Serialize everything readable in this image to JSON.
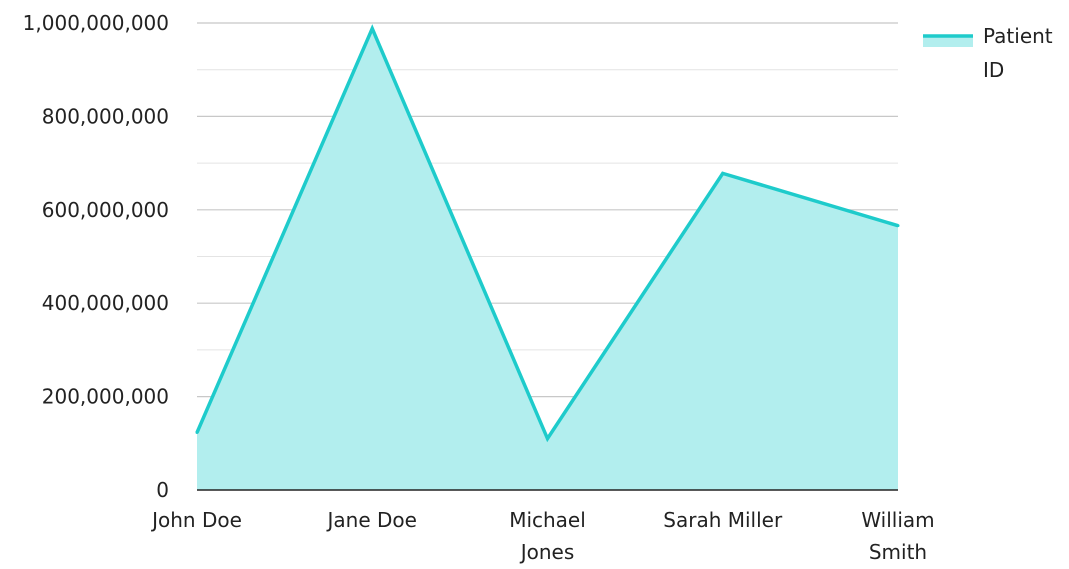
{
  "chart_data": {
    "type": "area",
    "categories": [
      "John Doe",
      "Jane Doe",
      "Michael Jones",
      "Sarah Miller",
      "William Smith"
    ],
    "category_lines": [
      [
        "John Doe"
      ],
      [
        "Jane Doe"
      ],
      [
        "Michael",
        "Jones"
      ],
      [
        "Sarah Miller"
      ],
      [
        "William",
        "Smith"
      ]
    ],
    "series": [
      {
        "name": "Patient ID",
        "values": [
          123000000,
          988000000,
          110000000,
          678000000,
          566000000
        ]
      }
    ],
    "ylim": [
      0,
      1000000000
    ],
    "yticks": [
      0,
      200000000,
      400000000,
      600000000,
      800000000,
      1000000000
    ],
    "ytick_labels": [
      "0",
      "200,000,000",
      "400,000,000",
      "600,000,000",
      "800,000,000",
      "1,000,000,000"
    ],
    "minor_gridlines": [
      100000000,
      300000000,
      500000000,
      700000000,
      900000000
    ],
    "grid": true,
    "legend": {
      "position": "top-right",
      "label_lines": [
        "Patient",
        "ID"
      ]
    },
    "colors": {
      "line": "#1ecbcb",
      "fill": "#b2eeee"
    }
  }
}
